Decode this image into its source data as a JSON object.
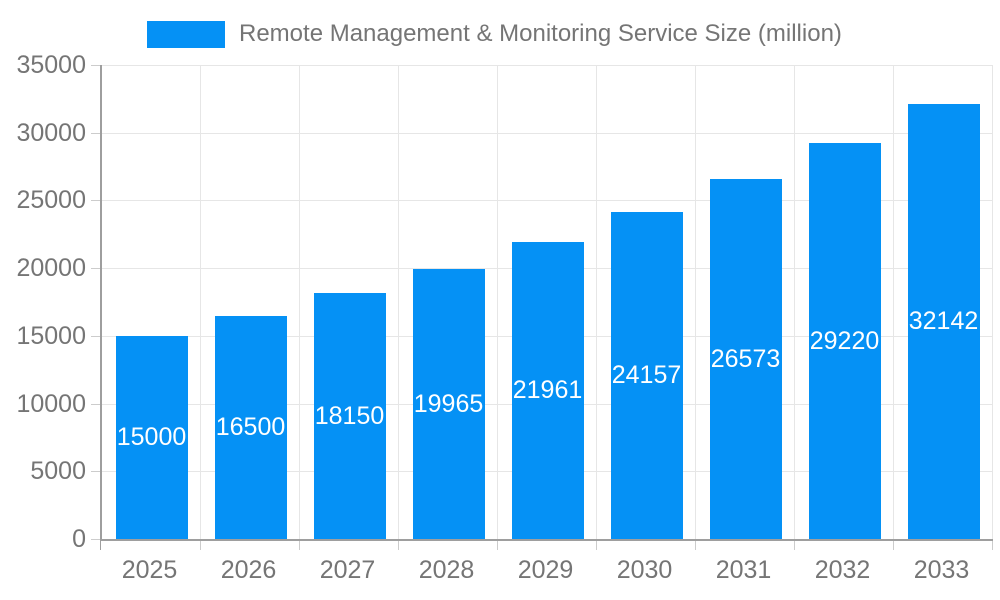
{
  "legend": {
    "label": "Remote Management & Monitoring Service Size (million)"
  },
  "colors": {
    "bar": "#0591f5",
    "axis": "#9e9e9e",
    "grid": "#e6e6e6",
    "tick": "#cccccc",
    "tick_label": "#757575",
    "value_label": "#ffffff",
    "background": "#ffffff"
  },
  "chart_data": {
    "type": "bar",
    "title": "Remote Management & Monitoring Service Size (million)",
    "categories": [
      "2025",
      "2026",
      "2027",
      "2028",
      "2029",
      "2030",
      "2031",
      "2032",
      "2033"
    ],
    "values": [
      15000,
      16500,
      18150,
      19965,
      21961,
      24157,
      26573,
      29220,
      32142
    ],
    "xlabel": "",
    "ylabel": "",
    "ylim": [
      0,
      35000
    ],
    "ytick_step": 5000,
    "ytick_labels": [
      "0",
      "5000",
      "10000",
      "15000",
      "20000",
      "25000",
      "30000",
      "35000"
    ],
    "grid": true,
    "legend_position": "top",
    "value_labels": "inside-center"
  }
}
